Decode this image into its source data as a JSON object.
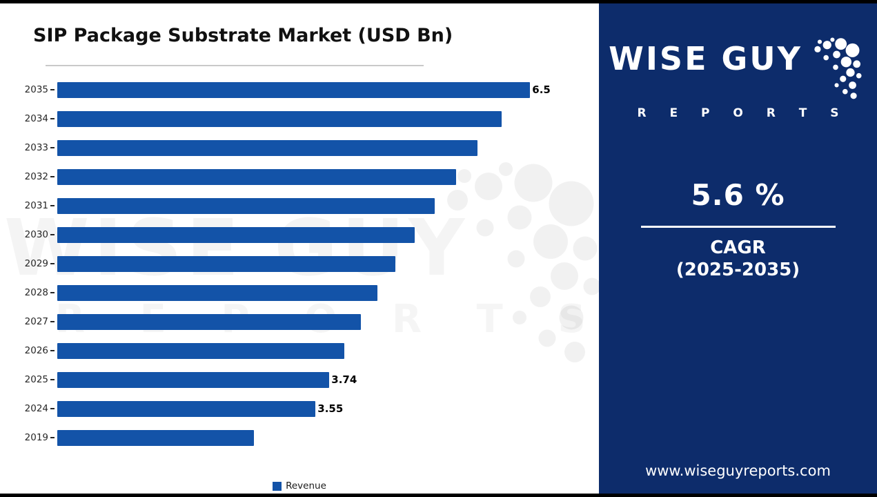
{
  "chart_data": {
    "type": "bar",
    "orientation": "horizontal",
    "title": "SIP Package Substrate Market (USD Bn)",
    "categories": [
      "2035",
      "2034",
      "2033",
      "2032",
      "2031",
      "2030",
      "2029",
      "2028",
      "2027",
      "2026",
      "2025",
      "2024",
      "2019"
    ],
    "values": [
      6.5,
      6.11,
      5.78,
      5.48,
      5.19,
      4.91,
      4.65,
      4.4,
      4.17,
      3.95,
      3.74,
      3.55,
      2.7
    ],
    "bar_labels": [
      "6.5",
      "",
      "",
      "",
      "",
      "",
      "",
      "",
      "",
      "",
      "3.74",
      "3.55",
      ""
    ],
    "xlabel": "",
    "ylabel": "",
    "xlim": [
      0,
      7.37
    ],
    "grid": false,
    "legend_position": "bottom-center",
    "legend": [
      "Revenue"
    ],
    "bar_color": "#1353a8"
  },
  "watermark": {
    "line1": "WISE GUY",
    "line2": "R E P O R T S"
  },
  "sidebar": {
    "bg_color": "#0d2c6b",
    "logo_line1": "WISE GUY",
    "logo_line2": "R E P O R T S",
    "cagr_value": "5.6 %",
    "cagr_label": "CAGR",
    "cagr_period": "(2025-2035)",
    "website": "www.wiseguyreports.com"
  }
}
